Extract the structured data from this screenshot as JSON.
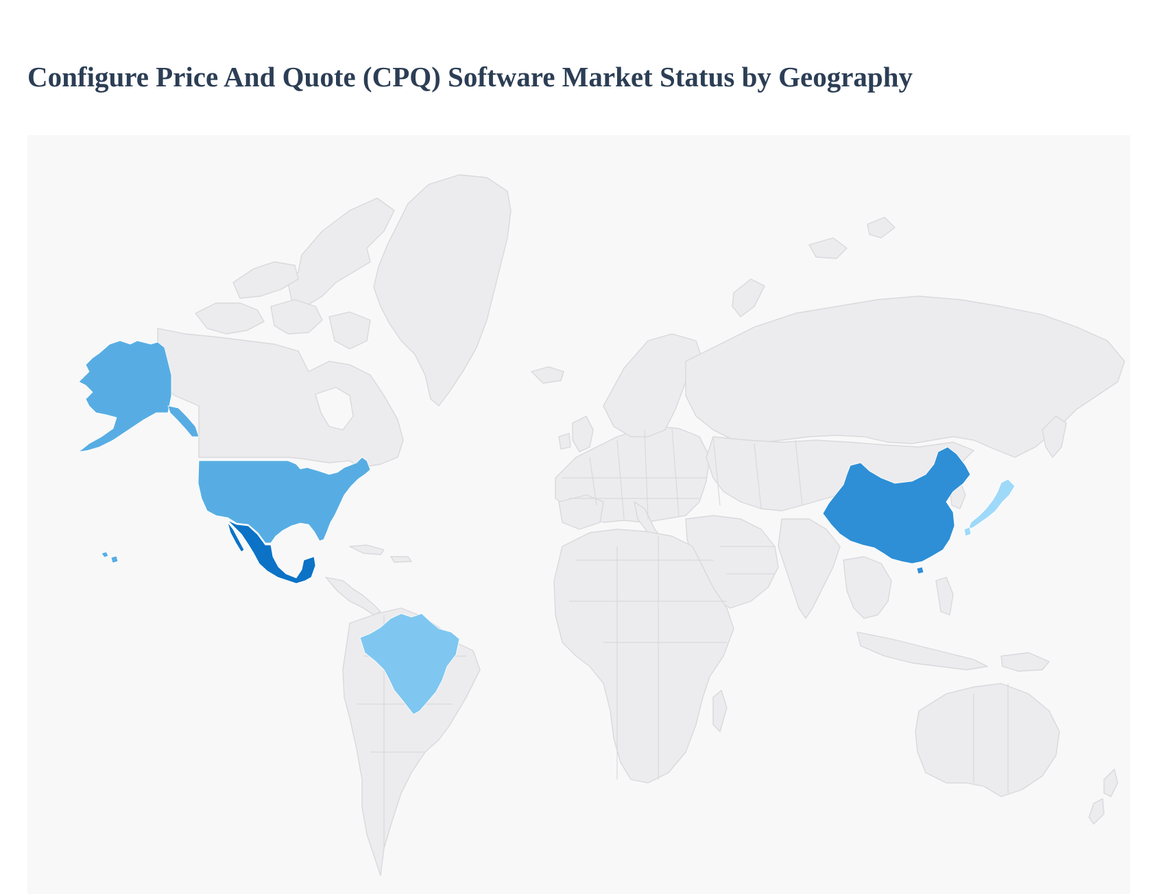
{
  "header": {
    "title": "Configure Price And Quote (CPQ) Software Market Status by Geography"
  },
  "map": {
    "type": "choropleth",
    "base_color": "#ececee",
    "border_color": "#d9d9dc",
    "background_color": "#f8f8f9",
    "highlighted_regions": [
      {
        "name": "United States",
        "shade": "medium",
        "color": "#57ade3"
      },
      {
        "name": "Mexico",
        "shade": "dark",
        "color": "#0b72c6"
      },
      {
        "name": "Brazil",
        "shade": "light",
        "color": "#7fc7f0"
      },
      {
        "name": "China",
        "shade": "medium-dark",
        "color": "#2e8fd6"
      },
      {
        "name": "Japan",
        "shade": "lightest",
        "color": "#9fd9f9"
      }
    ]
  }
}
